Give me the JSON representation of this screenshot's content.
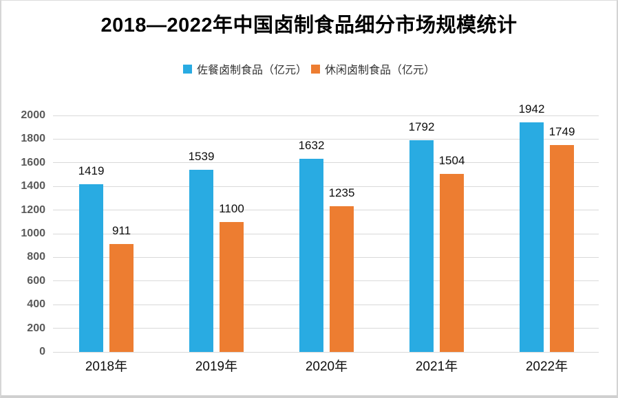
{
  "window": {
    "background": "#ffffff",
    "border_color": "#d6d6d6"
  },
  "chart_data": {
    "type": "bar",
    "title": "2018—2022年中国卤制食品细分市场规模统计",
    "categories": [
      "2018年",
      "2019年",
      "2020年",
      "2021年",
      "2022年"
    ],
    "series": [
      {
        "name": "佐餐卤制食品（亿元）",
        "color": "#29ABE2",
        "values": [
          1419,
          1539,
          1632,
          1792,
          1942
        ]
      },
      {
        "name": "休闲卤制食品（亿元）",
        "color": "#ED7D31",
        "values": [
          911,
          1100,
          1235,
          1504,
          1749
        ]
      }
    ],
    "ylim": [
      0,
      2000
    ],
    "yticks": [
      0,
      200,
      400,
      600,
      800,
      1000,
      1200,
      1400,
      1600,
      1800,
      2000
    ],
    "grid": "horizontal",
    "legend_position": "top",
    "data_labels": true,
    "colors": {
      "gridline": "#d9d9d9",
      "y_tick_text": "#595959",
      "label_text": "#0d0d0d",
      "title_text": "#000000"
    }
  }
}
